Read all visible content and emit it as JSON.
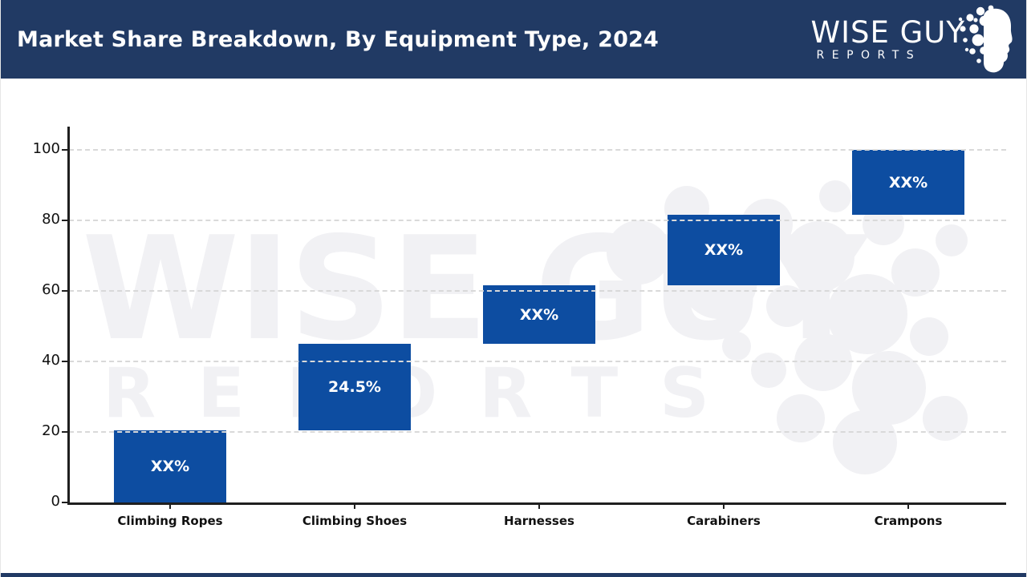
{
  "header": {
    "title": "Market Share Breakdown, By Equipment Type, 2024",
    "logo": {
      "line1": "WISE GUY",
      "line2": "REPORTS"
    },
    "bg_color": "#213a64",
    "text_color": "#ffffff"
  },
  "watermark": {
    "line1": "WISE GUY",
    "line2": "REPORTS",
    "color": "#f1f1f4"
  },
  "chart_data": {
    "type": "bar",
    "subtype": "waterfall",
    "title": "Market Share Breakdown, By Equipment Type, 2024",
    "categories": [
      "Climbing Ropes",
      "Climbing Shoes",
      "Harnesses",
      "Carabiners",
      "Crampons"
    ],
    "segments": [
      {
        "category": "Climbing Ropes",
        "start": 0,
        "end": 20.5,
        "label": "XX%"
      },
      {
        "category": "Climbing Shoes",
        "start": 20.5,
        "end": 45,
        "label": "24.5%"
      },
      {
        "category": "Harnesses",
        "start": 45,
        "end": 61.5,
        "label": "XX%"
      },
      {
        "category": "Carabiners",
        "start": 61.5,
        "end": 81.5,
        "label": "XX%"
      },
      {
        "category": "Crampons",
        "start": 81.5,
        "end": 100,
        "label": "XX%"
      }
    ],
    "yticks": [
      0,
      20,
      40,
      60,
      80,
      100
    ],
    "ylim": [
      0,
      106.6
    ],
    "grid": "horizontal-dashed",
    "legend": "none",
    "bar_color": "#0d4da1",
    "bar_label_color": "#ffffff",
    "axis_color": "#1f1f1f",
    "grid_color": "#d9d9d9"
  },
  "footer": {
    "bg_color": "#213a64"
  }
}
